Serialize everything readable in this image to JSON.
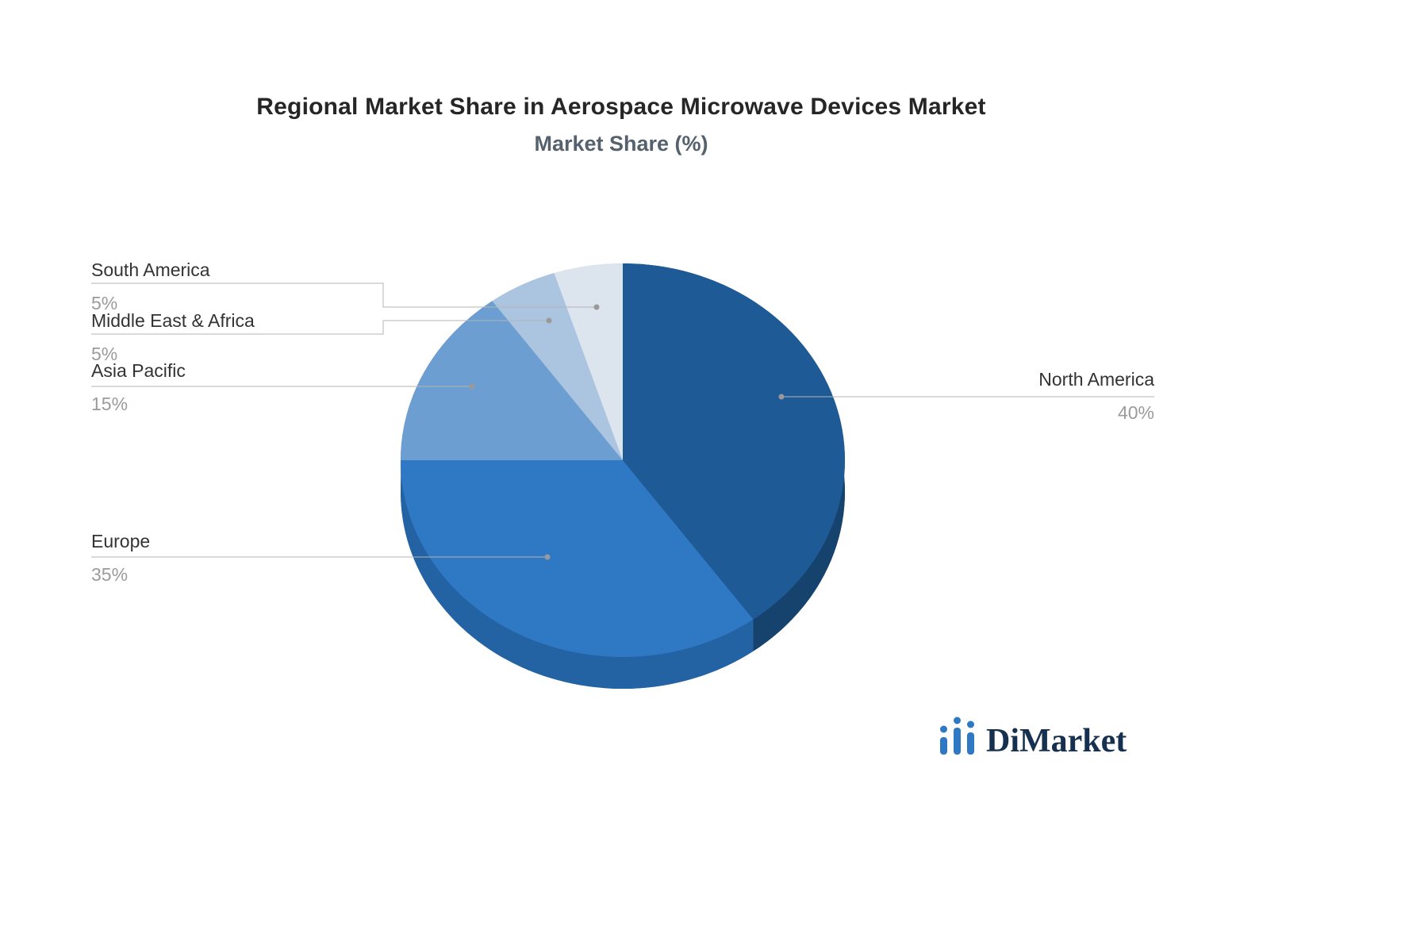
{
  "header": {
    "title": "Regional Market Share in Aerospace Microwave Devices Market",
    "subtitle": "Market Share (%)"
  },
  "chart_data": {
    "type": "pie",
    "title": "Regional Market Share in Aerospace Microwave Devices Market",
    "subtitle": "Market Share (%)",
    "unit": "percent",
    "effect": "3d",
    "start_angle_deg": 0,
    "direction": "clockwise",
    "legend_position": "callout-labels",
    "labels": [
      "North America",
      "Europe",
      "Asia Pacific",
      "Middle East & Africa",
      "South America"
    ],
    "values": [
      40,
      35,
      15,
      5,
      5
    ],
    "value_labels": [
      "40%",
      "35%",
      "15%",
      "5%",
      "5%"
    ],
    "colors": [
      "#1e5a96",
      "#2e78c4",
      "#6d9ed2",
      "#abc4e0",
      "#dce4ee"
    ],
    "depth_colors": [
      "#16436e",
      "#2363a3",
      "#5b86b8",
      "#90abc9",
      "#bcc8d8"
    ]
  },
  "theme": {
    "title_color": "#262626",
    "subtitle_color": "#55616d",
    "label_color": "#333333",
    "value_color": "#9b9b9b",
    "leader_color": "#b5b5b5",
    "dot_color": "#999999",
    "brand_text_color": "#16314f",
    "brand_icon_color": "#2e78c4",
    "background": "#ffffff"
  },
  "brand": {
    "name": "DiMarket"
  }
}
